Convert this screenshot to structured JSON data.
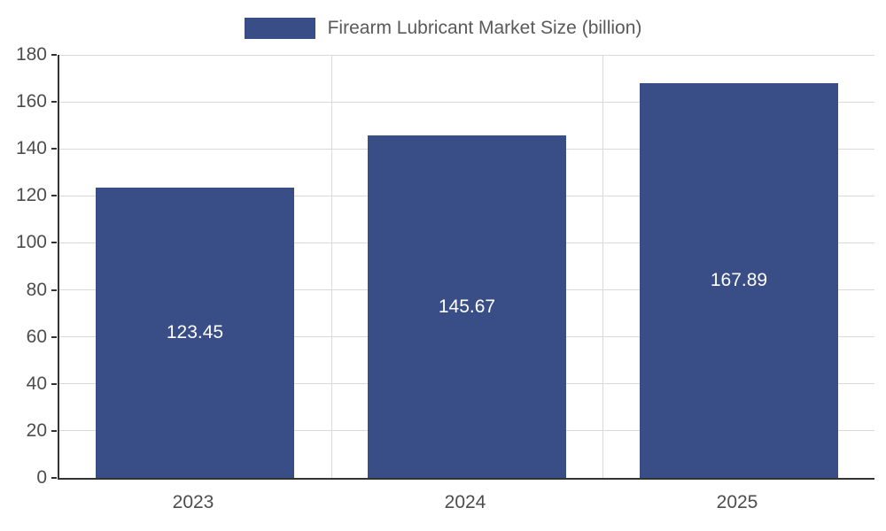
{
  "chart_data": {
    "type": "bar",
    "title": "Firearm Lubricant Market Size (billion)",
    "categories": [
      "2023",
      "2024",
      "2025"
    ],
    "values": [
      123.45,
      145.67,
      167.89
    ],
    "value_labels": [
      "123.45",
      "145.67",
      "167.89"
    ],
    "ylabel": "",
    "xlabel": "",
    "ylim": [
      0,
      180
    ],
    "y_ticks": [
      0,
      20,
      40,
      60,
      80,
      100,
      120,
      140,
      160,
      180
    ],
    "grid": true,
    "legend_position": "top",
    "bar_color": "#394d87",
    "value_label_color": "#ffffff",
    "grid_color": "#d9d9d9",
    "axis_color": "#333333",
    "tick_label_color": "#4d4d4d",
    "title_color": "#595959"
  },
  "legend": {
    "label": "Firearm Lubricant Market Size (billion)"
  }
}
